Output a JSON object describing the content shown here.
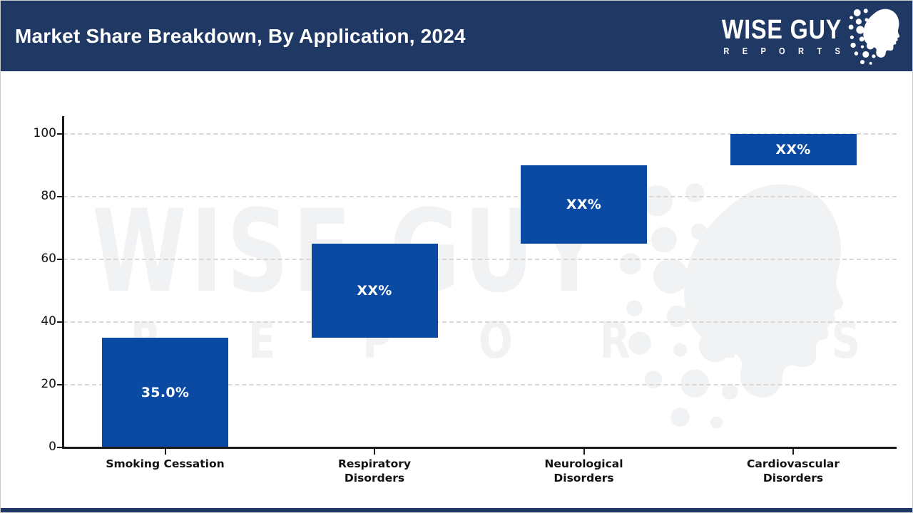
{
  "header": {
    "title": "Market Share Breakdown, By Application, 2024",
    "logo": {
      "primary": "WISE GUY",
      "secondary": "R E P O R T S"
    }
  },
  "watermark": {
    "primary": "WISE GUY",
    "secondary": "R E P O R T S"
  },
  "chart_data": {
    "type": "bar",
    "subtype": "waterfall",
    "title": "Market Share Breakdown, By Application, 2024",
    "categories": [
      "Smoking Cessation",
      "Respiratory Disorders",
      "Neurological Disorders",
      "Cardiovascular Disorders"
    ],
    "category_lines": [
      [
        "Smoking Cessation"
      ],
      [
        "Respiratory",
        "Disorders"
      ],
      [
        "Neurological",
        "Disorders"
      ],
      [
        "Cardiovascular",
        "Disorders"
      ]
    ],
    "values": [
      {
        "category": "Smoking Cessation",
        "start": 0,
        "end": 35,
        "label": "35.0%"
      },
      {
        "category": "Respiratory Disorders",
        "start": 35,
        "end": 65,
        "label": "XX%"
      },
      {
        "category": "Neurological Disorders",
        "start": 65,
        "end": 90,
        "label": "XX%"
      },
      {
        "category": "Cardiovascular Disorders",
        "start": 90,
        "end": 100,
        "label": "XX%"
      }
    ],
    "y_ticks": [
      0,
      20,
      40,
      60,
      80,
      100
    ],
    "ylim": [
      0,
      105
    ],
    "grid": "horizontal-dashed",
    "legend": "none",
    "xlabel": "",
    "ylabel": ""
  },
  "colors": {
    "header_bg": "#1f3864",
    "bar": "#0b4aa2",
    "watermark": "#f1f2f4",
    "grid": "#d8d8d8",
    "axis": "#1a1a1a"
  }
}
